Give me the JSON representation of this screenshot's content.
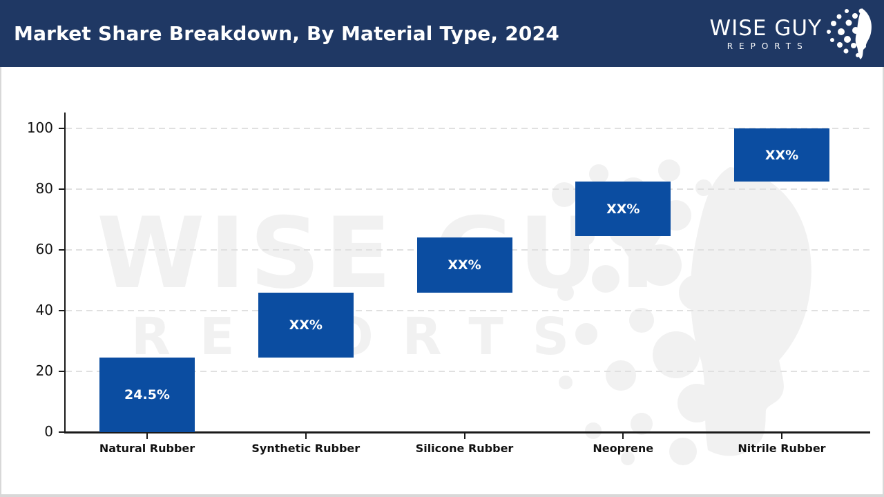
{
  "header": {
    "title": "Market Share Breakdown, By Material Type, 2024",
    "bg_color": "#1f3864",
    "logo": {
      "line1": "WISE GUY",
      "line2": "REPORTS"
    }
  },
  "watermark": {
    "line1": "WISE GUY",
    "line2": "REPORTS"
  },
  "theme": {
    "bar_color": "#0b4da1",
    "grid_color": "#e0e0e0",
    "axis_color": "#1a1a1a",
    "panel_border": "#d8d8d8",
    "watermark_color": "#f1f1f1"
  },
  "chart_data": {
    "type": "bar",
    "variant": "waterfall",
    "title": "Market Share Breakdown, By Material Type, 2024",
    "xlabel": "",
    "ylabel": "",
    "ylim": [
      0,
      100
    ],
    "yticks": [
      0,
      20,
      40,
      60,
      80,
      100
    ],
    "grid": "horizontal-dashed",
    "legend": "none",
    "bar_color": "#0b4da1",
    "categories": [
      "Natural Rubber",
      "Synthetic Rubber",
      "Silicone Rubber",
      "Neoprene",
      "Nitrile Rubber"
    ],
    "segments": [
      {
        "category": "Natural Rubber",
        "start": 0,
        "end": 24.5,
        "label": "24.5%"
      },
      {
        "category": "Synthetic Rubber",
        "start": 24.5,
        "end": 46,
        "label": "XX%"
      },
      {
        "category": "Silicone Rubber",
        "start": 46,
        "end": 64,
        "label": "XX%"
      },
      {
        "category": "Neoprene",
        "start": 64.5,
        "end": 82.5,
        "label": "XX%"
      },
      {
        "category": "Nitrile Rubber",
        "start": 82.5,
        "end": 100,
        "label": "XX%"
      }
    ]
  }
}
